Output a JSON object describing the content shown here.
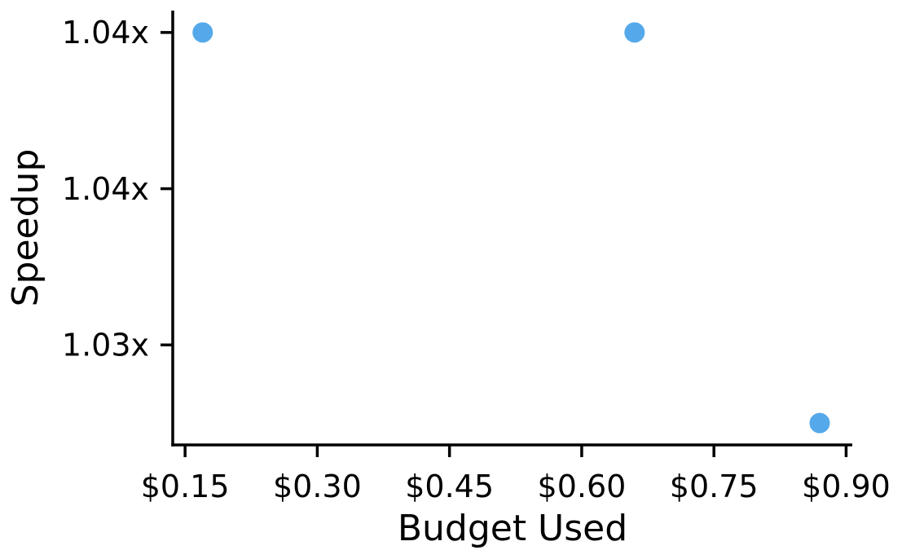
{
  "chart_data": {
    "type": "scatter",
    "title": "",
    "xlabel": "Budget Used",
    "ylabel": "Speedup",
    "x_ticks": [
      {
        "value": 0.15,
        "label": "$0.15"
      },
      {
        "value": 0.3,
        "label": "$0.30"
      },
      {
        "value": 0.45,
        "label": "$0.45"
      },
      {
        "value": 0.6,
        "label": "$0.60"
      },
      {
        "value": 0.75,
        "label": "$0.75"
      },
      {
        "value": 0.9,
        "label": "$0.90"
      }
    ],
    "y_ticks": [
      {
        "value": 1.04,
        "label": "1.04x"
      },
      {
        "value": 1.035,
        "label": "1.04x"
      },
      {
        "value": 1.03,
        "label": "1.03x"
      }
    ],
    "points": [
      {
        "x": 0.17,
        "y": 1.04
      },
      {
        "x": 0.66,
        "y": 1.04
      },
      {
        "x": 0.87,
        "y": 1.0275
      }
    ],
    "xlim": [
      0.136,
      0.907
    ],
    "ylim": [
      1.0268,
      1.0407
    ],
    "grid": false,
    "legend": null,
    "point_color": "#55a9ea",
    "axis_color": "#000000"
  }
}
